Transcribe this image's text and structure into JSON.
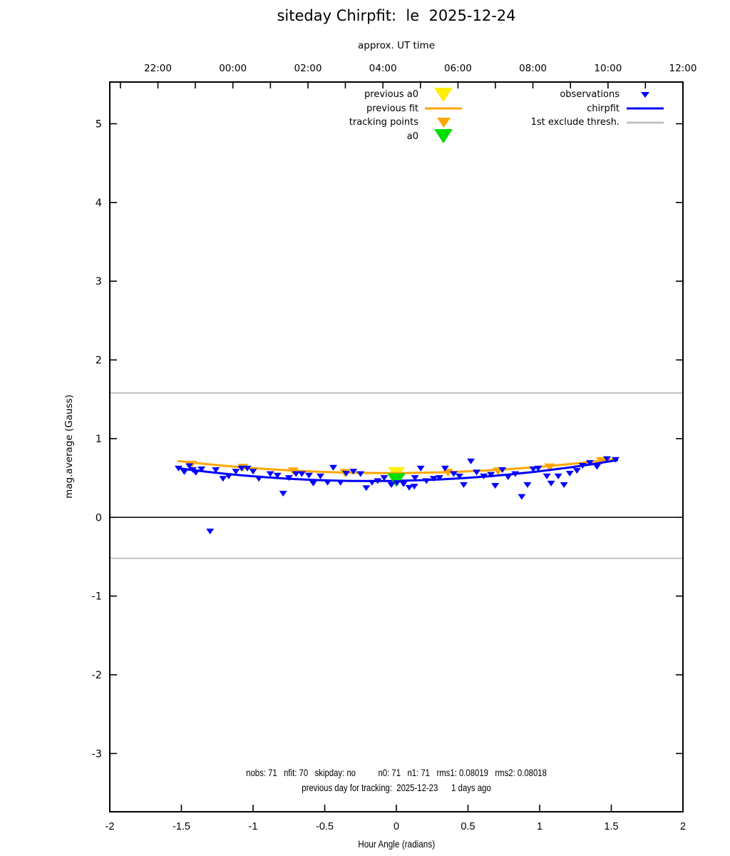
{
  "title": "siteday Chirpfit:  le  2025-12-24",
  "chart_data": {
    "type": "scatter",
    "title": "siteday Chirpfit:  le  2025-12-24",
    "xlabel": "Hour Angle (radians)",
    "x2label": "approx. UT time",
    "ylabel": "mag.average (Gauss)",
    "xlim": [
      -2,
      2
    ],
    "ylim": [
      -3.74,
      5.53
    ],
    "grid": false,
    "x_ticks": [
      -2,
      -1.5,
      -1,
      -0.5,
      0,
      0.5,
      1,
      1.5,
      2
    ],
    "y_ticks": [
      -3,
      -2,
      -1,
      0,
      1,
      2,
      3,
      4,
      5
    ],
    "top_axis_ticks": [
      {
        "ha": -1.926
      },
      {
        "ha": -1.664,
        "label": "22:00"
      },
      {
        "ha": -1.403
      },
      {
        "ha": -1.141,
        "label": "00:00"
      },
      {
        "ha": -0.879
      },
      {
        "ha": -0.617,
        "label": "02:00"
      },
      {
        "ha": -0.356
      },
      {
        "ha": -0.094,
        "label": "04:00"
      },
      {
        "ha": 0.168
      },
      {
        "ha": 0.43,
        "label": "06:00"
      },
      {
        "ha": 0.691
      },
      {
        "ha": 0.953,
        "label": "08:00"
      },
      {
        "ha": 1.215
      },
      {
        "ha": 1.477,
        "label": "10:00"
      },
      {
        "ha": 1.738
      },
      {
        "ha": 2.0,
        "label": "12:00"
      }
    ],
    "series": [
      {
        "name": "1st exclude thresh.",
        "type": "hline",
        "color": "#c0c0c0",
        "width": 2,
        "z": 0,
        "values": [
          1.58,
          -0.52
        ]
      },
      {
        "name": "zero line",
        "type": "hline",
        "color": "#000000",
        "width": 1.5,
        "z": 1,
        "values": [
          0
        ]
      },
      {
        "name": "tracking points",
        "type": "scatter",
        "marker": "triangle-down",
        "color": "#ffa500",
        "marker_w": 15,
        "marker_h": 11,
        "z": 2,
        "points": [
          [
            -1.43,
            0.67
          ],
          [
            -1.07,
            0.63
          ],
          [
            -0.72,
            0.585
          ],
          [
            -0.36,
            0.565
          ],
          [
            0.0,
            0.555
          ],
          [
            0.36,
            0.565
          ],
          [
            0.71,
            0.585
          ],
          [
            1.07,
            0.635
          ],
          [
            1.43,
            0.715
          ]
        ]
      },
      {
        "name": "previous a0",
        "type": "scatter",
        "marker": "triangle-down",
        "color": "#ffee00",
        "marker_w": 24,
        "marker_h": 17,
        "z": 3,
        "points": [
          [
            0,
            0.56
          ]
        ]
      },
      {
        "name": "previous fit",
        "type": "curve",
        "color": "#ffa500",
        "width": 3,
        "z": 4,
        "poly": [
          0.563,
          0.008,
          0.071
        ],
        "x_range": [
          -1.52,
          1.54
        ]
      },
      {
        "name": "chirpfit",
        "type": "curve",
        "color": "#0000ff",
        "width": 3,
        "z": 5,
        "poly": [
          0.464,
          0.032,
          0.09
        ],
        "x_range": [
          -1.52,
          1.54
        ]
      },
      {
        "name": "a0",
        "type": "scatter",
        "marker": "triangle-down",
        "color": "#00dd00",
        "marker_w": 26,
        "marker_h": 19,
        "z": 6,
        "points": [
          [
            0,
            0.475
          ]
        ]
      },
      {
        "name": "observations",
        "type": "scatter",
        "marker": "triangle-down",
        "color": "#0000ff",
        "marker_w": 11,
        "marker_h": 8,
        "z": 7,
        "points": [
          [
            -1.52,
            0.62
          ],
          [
            -1.48,
            0.575
          ],
          [
            -1.445,
            0.65
          ],
          [
            -1.42,
            0.6
          ],
          [
            -1.4,
            0.565
          ],
          [
            -1.36,
            0.61
          ],
          [
            -1.3,
            -0.18
          ],
          [
            -1.26,
            0.6
          ],
          [
            -1.21,
            0.49
          ],
          [
            -1.17,
            0.52
          ],
          [
            -1.12,
            0.58
          ],
          [
            -1.08,
            0.62
          ],
          [
            -1.04,
            0.62
          ],
          [
            -1.0,
            0.58
          ],
          [
            -0.96,
            0.49
          ],
          [
            -0.88,
            0.55
          ],
          [
            -0.83,
            0.53
          ],
          [
            -0.79,
            0.3
          ],
          [
            -0.75,
            0.5
          ],
          [
            -0.7,
            0.55
          ],
          [
            -0.66,
            0.55
          ],
          [
            -0.61,
            0.53
          ],
          [
            -0.58,
            0.43
          ],
          [
            -0.53,
            0.52
          ],
          [
            -0.48,
            0.44
          ],
          [
            -0.44,
            0.63
          ],
          [
            -0.39,
            0.44
          ],
          [
            -0.35,
            0.555
          ],
          [
            -0.3,
            0.58
          ],
          [
            -0.25,
            0.55
          ],
          [
            -0.21,
            0.37
          ],
          [
            -0.17,
            0.44
          ],
          [
            -0.13,
            0.46
          ],
          [
            -0.085,
            0.5
          ],
          [
            -0.035,
            0.41
          ],
          [
            0.005,
            0.435
          ],
          [
            0.05,
            0.42
          ],
          [
            0.09,
            0.375
          ],
          [
            0.125,
            0.39
          ],
          [
            0.13,
            0.5
          ],
          [
            0.17,
            0.62
          ],
          [
            0.21,
            0.46
          ],
          [
            0.26,
            0.49
          ],
          [
            0.3,
            0.5
          ],
          [
            0.34,
            0.62
          ],
          [
            0.4,
            0.55
          ],
          [
            0.44,
            0.52
          ],
          [
            0.47,
            0.41
          ],
          [
            0.52,
            0.71
          ],
          [
            0.56,
            0.57
          ],
          [
            0.61,
            0.52
          ],
          [
            0.66,
            0.54
          ],
          [
            0.69,
            0.4
          ],
          [
            0.74,
            0.6
          ],
          [
            0.78,
            0.51
          ],
          [
            0.83,
            0.55
          ],
          [
            0.875,
            0.26
          ],
          [
            0.915,
            0.41
          ],
          [
            0.955,
            0.61
          ],
          [
            0.99,
            0.62
          ],
          [
            1.05,
            0.52
          ],
          [
            1.08,
            0.43
          ],
          [
            1.13,
            0.52
          ],
          [
            1.17,
            0.41
          ],
          [
            1.21,
            0.555
          ],
          [
            1.26,
            0.59
          ],
          [
            1.3,
            0.655
          ],
          [
            1.35,
            0.69
          ],
          [
            1.4,
            0.64
          ],
          [
            1.47,
            0.74
          ],
          [
            1.53,
            0.73
          ]
        ]
      }
    ]
  },
  "legend": {
    "left": [
      {
        "label": "previous a0",
        "marker": "triangle-big",
        "color": "#ffee00"
      },
      {
        "label": "previous fit",
        "marker": "line",
        "color": "#ffa500"
      },
      {
        "label": "tracking points",
        "marker": "triangle-med",
        "color": "#ffa500"
      },
      {
        "label": "a0",
        "marker": "triangle-big",
        "color": "#00dd00"
      }
    ],
    "right": [
      {
        "label": "observations",
        "marker": "triangle-small",
        "color": "#0000ff"
      },
      {
        "label": "chirpfit",
        "marker": "line",
        "color": "#0000ff"
      },
      {
        "label": "1st exclude thresh.",
        "marker": "line",
        "color": "#c0c0c0"
      }
    ]
  },
  "stats": {
    "line1": "nobs: 71   nfit: 70   skipday: no          n0: 71   n1: 71   rms1: 0.08019   rms2: 0.08018",
    "line2": "previous day for tracking:  2025-12-23      1 days ago"
  },
  "colors": {
    "observations": "#0000ff",
    "chirpfit": "#0000ff",
    "previous_fit": "#ffa500",
    "tracking_points": "#ffa500",
    "previous_a0": "#ffee00",
    "a0": "#00dd00",
    "exclude_threshold": "#c0c0c0",
    "axis": "#000000"
  }
}
